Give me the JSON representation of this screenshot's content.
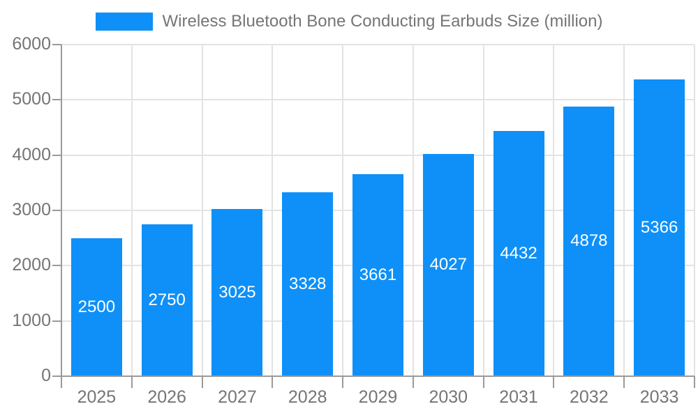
{
  "legend": {
    "swatch_color": "#0E90F8"
  },
  "chart_data": {
    "type": "bar",
    "title": "Wireless Bluetooth Bone Conducting Earbuds Size (million)",
    "categories": [
      "2025",
      "2026",
      "2027",
      "2028",
      "2029",
      "2030",
      "2031",
      "2032",
      "2033"
    ],
    "values": [
      2500,
      2750,
      3025,
      3328,
      3661,
      4027,
      4432,
      4878,
      5366
    ],
    "series": [
      {
        "name": "Wireless Bluetooth Bone Conducting Earbuds Size (million)",
        "values": [
          2500,
          2750,
          3025,
          3328,
          3661,
          4027,
          4432,
          4878,
          5366
        ]
      }
    ],
    "xlabel": "",
    "ylabel": "",
    "ylim": [
      0,
      6000
    ],
    "ytick_step": 1000,
    "ytick_labels": [
      "0",
      "1000",
      "2000",
      "3000",
      "4000",
      "5000",
      "6000"
    ],
    "grid": true,
    "legend_position": "top-center",
    "data_labels": "white, centered inside bars",
    "bar_color": "#0E90F8",
    "bar_label_color": "#ffffff",
    "axis_text_color": "#757575",
    "grid_color": "#e3e3e3",
    "axis_line_color": "#9a9a9a"
  }
}
